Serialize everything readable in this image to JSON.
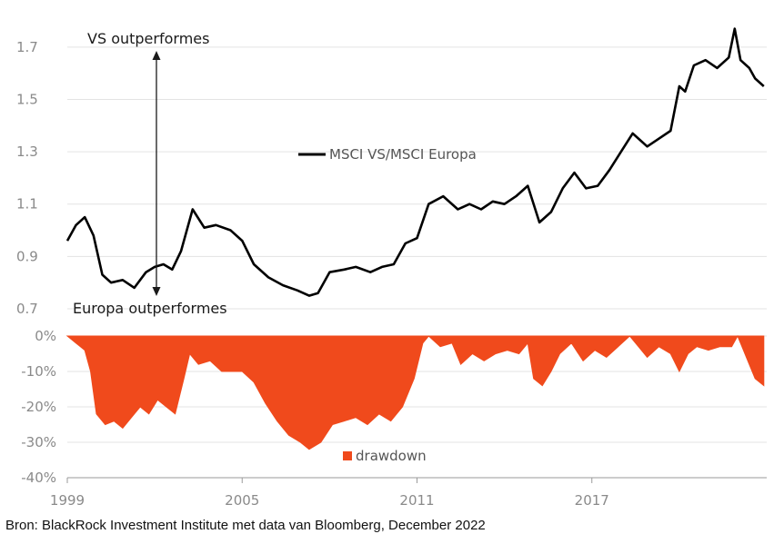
{
  "chart_data": [
    {
      "type": "line",
      "title": "",
      "xlabel": "",
      "ylabel": "",
      "ylim": [
        0.7,
        1.8
      ],
      "yticks": [
        "1.7",
        "1.5",
        "1.3",
        "1.1",
        "0.9",
        "0.7"
      ],
      "grid": "horizontal",
      "legend_position": "center",
      "annotations": {
        "up": "VS outperformes",
        "down": "Europa outperformes"
      },
      "series": [
        {
          "name": "MSCI VS/MSCI Europa",
          "color": "#000000",
          "x": [
            1999.0,
            1999.3,
            1999.6,
            1999.9,
            2000.2,
            2000.5,
            2000.9,
            2001.3,
            2001.7,
            2002.0,
            2002.3,
            2002.6,
            2002.9,
            2003.3,
            2003.7,
            2004.1,
            2004.6,
            2005.0,
            2005.4,
            2005.9,
            2006.4,
            2006.9,
            2007.3,
            2007.6,
            2008.0,
            2008.5,
            2008.9,
            2009.4,
            2009.8,
            2010.2,
            2010.6,
            2011.0,
            2011.4,
            2011.9,
            2012.4,
            2012.8,
            2013.2,
            2013.6,
            2014.0,
            2014.4,
            2014.8,
            2015.2,
            2015.6,
            2016.0,
            2016.4,
            2016.8,
            2017.2,
            2017.6,
            2018.0,
            2018.4,
            2018.9,
            2019.3,
            2019.7,
            2020.0,
            2020.2,
            2020.5,
            2020.9,
            2021.3,
            2021.7,
            2021.9,
            2022.1,
            2022.4,
            2022.6,
            2022.9
          ],
          "values": [
            0.96,
            1.02,
            1.05,
            0.98,
            0.83,
            0.8,
            0.81,
            0.78,
            0.84,
            0.86,
            0.87,
            0.85,
            0.92,
            1.08,
            1.01,
            1.02,
            1.0,
            0.96,
            0.87,
            0.82,
            0.79,
            0.77,
            0.75,
            0.76,
            0.84,
            0.85,
            0.86,
            0.84,
            0.86,
            0.87,
            0.95,
            0.97,
            1.1,
            1.13,
            1.08,
            1.1,
            1.08,
            1.11,
            1.1,
            1.13,
            1.17,
            1.03,
            1.07,
            1.16,
            1.22,
            1.16,
            1.17,
            1.23,
            1.3,
            1.37,
            1.32,
            1.35,
            1.38,
            1.55,
            1.53,
            1.63,
            1.65,
            1.62,
            1.66,
            1.77,
            1.65,
            1.62,
            1.58,
            1.55
          ]
        }
      ]
    },
    {
      "type": "area",
      "title": "",
      "xlabel": "",
      "ylabel": "",
      "ylim": [
        -40,
        0
      ],
      "yticks": [
        "0%",
        "-10%",
        "-20%",
        "-30%",
        "-40%"
      ],
      "xticks": [
        "1999",
        "2005",
        "2011",
        "2017"
      ],
      "x_range": [
        1999,
        2023
      ],
      "grid": "horizontal",
      "series": [
        {
          "name": "drawdown",
          "color": "#f04a1c",
          "x": [
            1999.0,
            1999.3,
            1999.6,
            1999.8,
            2000.0,
            2000.3,
            2000.6,
            2000.9,
            2001.2,
            2001.5,
            2001.8,
            2002.1,
            2002.4,
            2002.7,
            2003.0,
            2003.2,
            2003.5,
            2003.9,
            2004.3,
            2004.7,
            2005.0,
            2005.4,
            2005.8,
            2006.2,
            2006.6,
            2007.0,
            2007.3,
            2007.7,
            2008.1,
            2008.5,
            2008.9,
            2009.3,
            2009.7,
            2010.1,
            2010.5,
            2010.9,
            2011.2,
            2011.4,
            2011.8,
            2012.2,
            2012.5,
            2012.9,
            2013.3,
            2013.7,
            2014.1,
            2014.5,
            2014.8,
            2015.0,
            2015.3,
            2015.6,
            2015.9,
            2016.3,
            2016.7,
            2017.1,
            2017.5,
            2017.9,
            2018.3,
            2018.6,
            2018.9,
            2019.3,
            2019.7,
            2020.0,
            2020.3,
            2020.6,
            2021.0,
            2021.4,
            2021.8,
            2022.0,
            2022.3,
            2022.6,
            2022.9
          ],
          "values": [
            0,
            -2,
            -4,
            -10,
            -22,
            -25,
            -24,
            -26,
            -23,
            -20,
            -22,
            -18,
            -20,
            -22,
            -12,
            -5,
            -8,
            -7,
            -10,
            -10,
            -10,
            -13,
            -19,
            -24,
            -28,
            -30,
            -32,
            -30,
            -25,
            -24,
            -23,
            -25,
            -22,
            -24,
            -20,
            -12,
            -2,
            0,
            -3,
            -2,
            -8,
            -5,
            -7,
            -5,
            -4,
            -5,
            -2,
            -12,
            -14,
            -10,
            -5,
            -2,
            -7,
            -4,
            -6,
            -3,
            0,
            -3,
            -6,
            -3,
            -5,
            -10,
            -5,
            -3,
            -4,
            -3,
            -3,
            0,
            -6,
            -12,
            -14
          ]
        }
      ]
    }
  ],
  "source": "Bron: BlackRock Investment Institute met data van Bloomberg, December 2022"
}
